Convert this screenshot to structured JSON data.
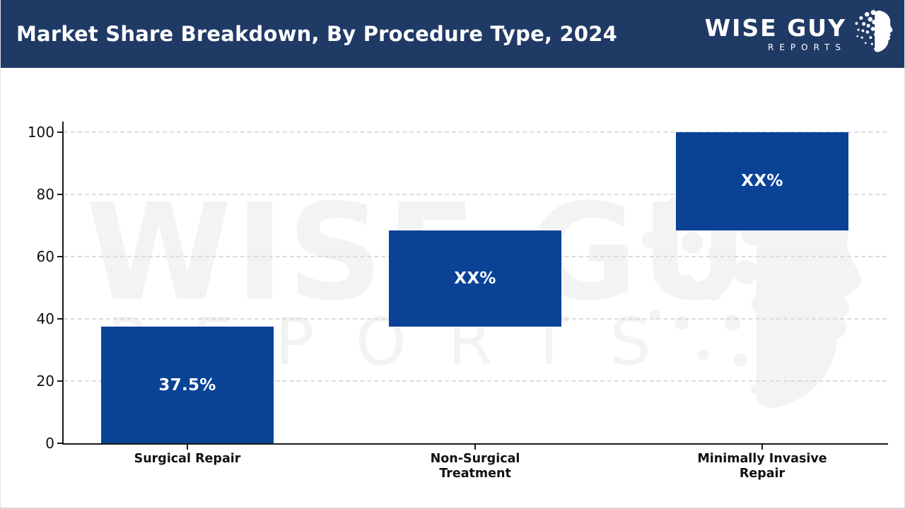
{
  "header": {
    "title": "Market Share Breakdown, By Procedure Type, 2024",
    "bg_color": "#203a66",
    "logo": {
      "name": "WISE GUY",
      "sub": "REPORTS"
    }
  },
  "watermark": {
    "name": "WISE GUY",
    "sub": "REPORTS"
  },
  "chart_data": {
    "type": "bar",
    "variant": "stacked-waterfall-percent",
    "title": "Market Share Breakdown, By Procedure Type, 2024",
    "categories": [
      {
        "lines": [
          "Surgical Repair"
        ]
      },
      {
        "lines": [
          "Non-Surgical",
          "Treatment"
        ]
      },
      {
        "lines": [
          "Minimally Invasive",
          "Repair"
        ]
      }
    ],
    "bars": [
      {
        "category": "Surgical Repair",
        "label": "37.5%",
        "start": 0,
        "end": 37.5
      },
      {
        "category": "Non-Surgical Treatment",
        "label": "XX%",
        "start": 37.5,
        "end": 68.5
      },
      {
        "category": "Minimally Invasive Repair",
        "label": "XX%",
        "start": 68.5,
        "end": 100
      }
    ],
    "ylim": [
      0,
      100
    ],
    "yticks": [
      "0",
      "20",
      "40",
      "60",
      "80",
      "100"
    ],
    "grid": "horizontal-dashed",
    "legend": "none",
    "bar_color": "#0a4296",
    "grid_color": "#dcdcdc",
    "axis_color": "#1a1a1a"
  }
}
